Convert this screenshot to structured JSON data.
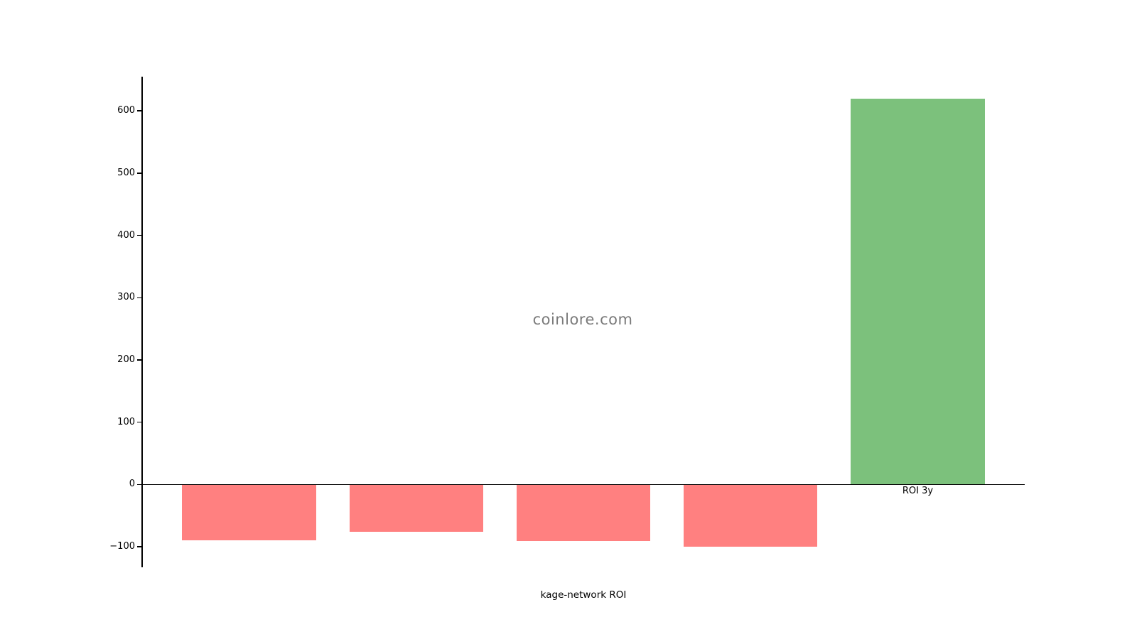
{
  "watermark": {
    "text": "coinlore.com",
    "color": "#7a7a7a"
  },
  "colors": {
    "bar_negative": "#FF8080",
    "bar_positive": "#7CC17C",
    "axis_line": "#000000",
    "tick_text": "#000000"
  },
  "chart_data": {
    "type": "bar",
    "title": "",
    "xlabel": "kage-network ROI",
    "ylabel": "",
    "categories": [
      "",
      "",
      "",
      "",
      "ROI 3y"
    ],
    "values": [
      -90,
      -76,
      -91,
      -100,
      620
    ],
    "bar_colors": [
      "#FF8080",
      "#FF8080",
      "#FF8080",
      "#FF8080",
      "#7CC17C"
    ],
    "ylim": [
      -133,
      655
    ],
    "yticks": [
      {
        "value": -100,
        "label": "−100"
      },
      {
        "value": 0,
        "label": "0"
      },
      {
        "value": 100,
        "label": "100"
      },
      {
        "value": 200,
        "label": "200"
      },
      {
        "value": 300,
        "label": "300"
      },
      {
        "value": 400,
        "label": "400"
      },
      {
        "value": 500,
        "label": "500"
      },
      {
        "value": 600,
        "label": "600"
      }
    ],
    "grid": false,
    "legend_position": "none",
    "bar_width_fraction": 0.8
  }
}
